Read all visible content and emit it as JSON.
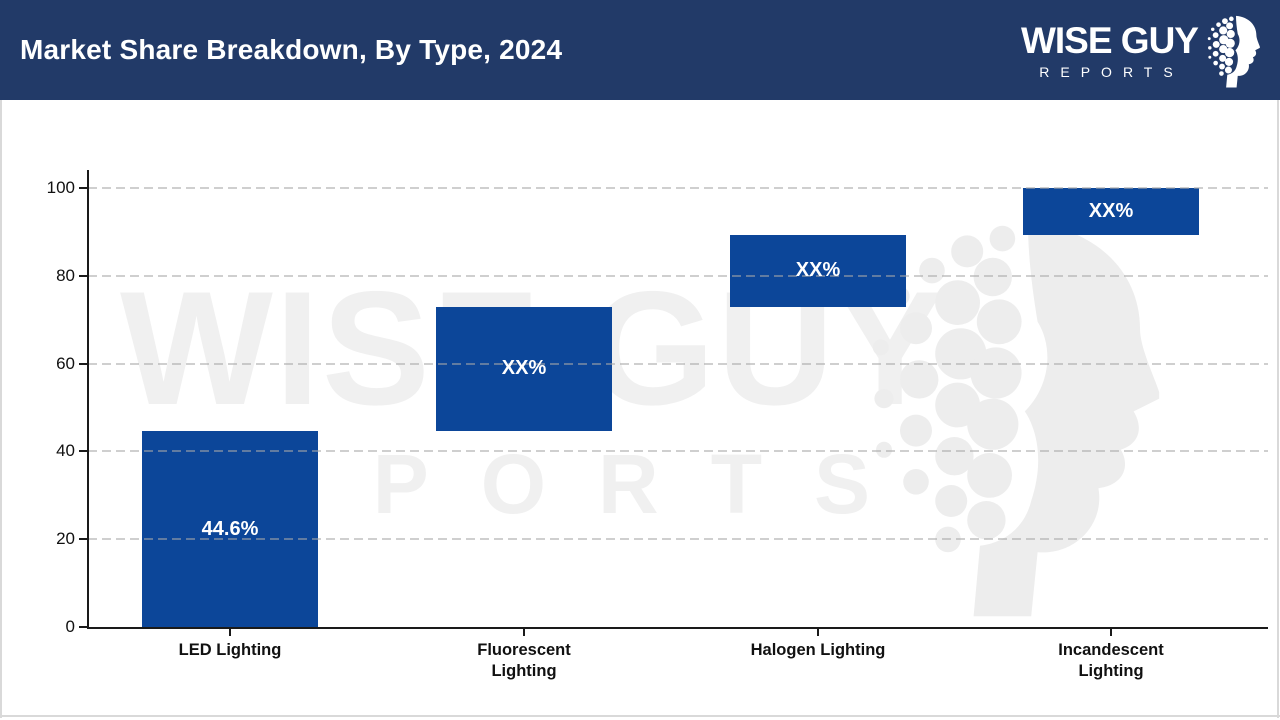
{
  "header": {
    "title": "Market Share Breakdown, By Type, 2024",
    "logo": {
      "line1": "WISE GUY",
      "line2": "REPORTS"
    }
  },
  "watermark": {
    "line1": "WISE GUY",
    "line2": "REPORTS"
  },
  "colors": {
    "header_bg": "#223A68",
    "bar": "#0C4699",
    "axis": "#1A1A1A",
    "grid": "#CFCFCF",
    "label_on_bar": "#FFFFFF",
    "watermark": "#F0F0F0",
    "border": "#D9D9D9"
  },
  "chart_data": {
    "type": "bar",
    "subtype": "waterfall",
    "title": "Market Share Breakdown, By Type, 2024",
    "categories": [
      "LED Lighting",
      "Fluorescent Lighting",
      "Halogen Lighting",
      "Incandescent Lighting"
    ],
    "category_label_lines": [
      [
        "LED Lighting"
      ],
      [
        "Fluorescent",
        "Lighting"
      ],
      [
        "Halogen Lighting"
      ],
      [
        "Incandescent",
        "Lighting"
      ]
    ],
    "segments": [
      {
        "category": "LED Lighting",
        "start": 0,
        "end": 44.6,
        "label": "44.6%"
      },
      {
        "category": "Fluorescent Lighting",
        "start": 44.6,
        "end": 73,
        "label": "XX%"
      },
      {
        "category": "Halogen Lighting",
        "start": 73,
        "end": 89.4,
        "label": "XX%"
      },
      {
        "category": "Incandescent Lighting",
        "start": 89.4,
        "end": 100,
        "label": "XX%"
      }
    ],
    "ylim": [
      0,
      100
    ],
    "yticks": [
      0,
      20,
      40,
      60,
      80,
      100
    ],
    "grid": "horizontal-dashed",
    "legend": null
  }
}
